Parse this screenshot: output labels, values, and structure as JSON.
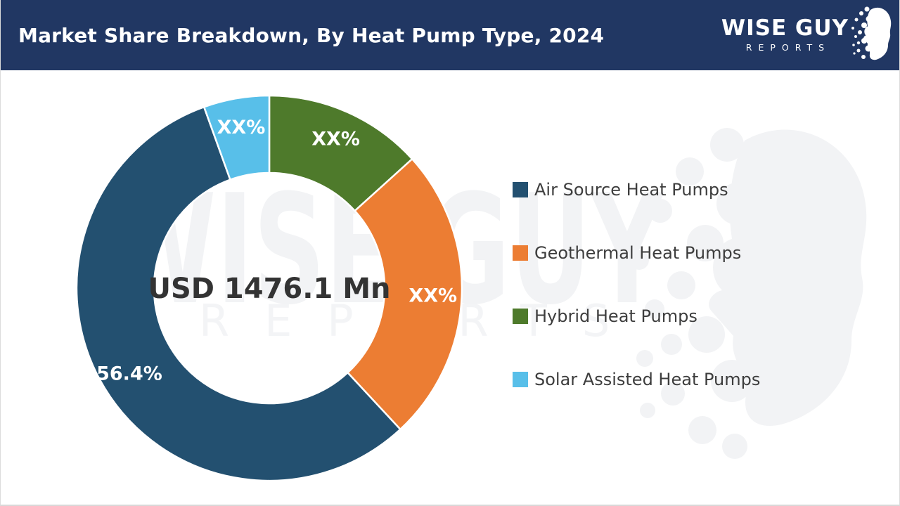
{
  "header": {
    "title": "Market Share Breakdown, By Heat Pump Type, 2024",
    "logo": {
      "line1": "WISE GUY",
      "line2": "REPORTS"
    }
  },
  "watermark": {
    "line1": "WISE GUY",
    "line2": "REPORTS"
  },
  "chart_data": {
    "type": "pie",
    "subtype": "donut",
    "title": "Market Share Breakdown, By Heat Pump Type, 2024",
    "center_total": "USD 1476.1 Mn",
    "units": "percent market share",
    "start_angle_deg": 0,
    "direction": "clockwise",
    "segments": [
      {
        "label": "Hybrid Heat Pumps",
        "display_label": "XX%",
        "arc_pct": 13.3,
        "color": "#4E7A2B"
      },
      {
        "label": "Geothermal Heat Pumps",
        "display_label": "XX%",
        "arc_pct": 24.8,
        "color": "#EC7D33"
      },
      {
        "label": "Air Source Heat Pumps",
        "display_label": "56.4%",
        "arc_pct": 56.4,
        "color": "#235070"
      },
      {
        "label": "Solar Assisted Heat Pumps",
        "display_label": "XX%",
        "arc_pct": 5.5,
        "color": "#58BFE9"
      }
    ],
    "legend_position": "right",
    "legend": [
      {
        "label": "Air Source Heat Pumps",
        "color": "#235070"
      },
      {
        "label": "Geothermal Heat Pumps",
        "color": "#EC7D33"
      },
      {
        "label": "Hybrid Heat Pumps",
        "color": "#4E7A2B"
      },
      {
        "label": "Solar Assisted Heat Pumps",
        "color": "#58BFE9"
      }
    ]
  }
}
